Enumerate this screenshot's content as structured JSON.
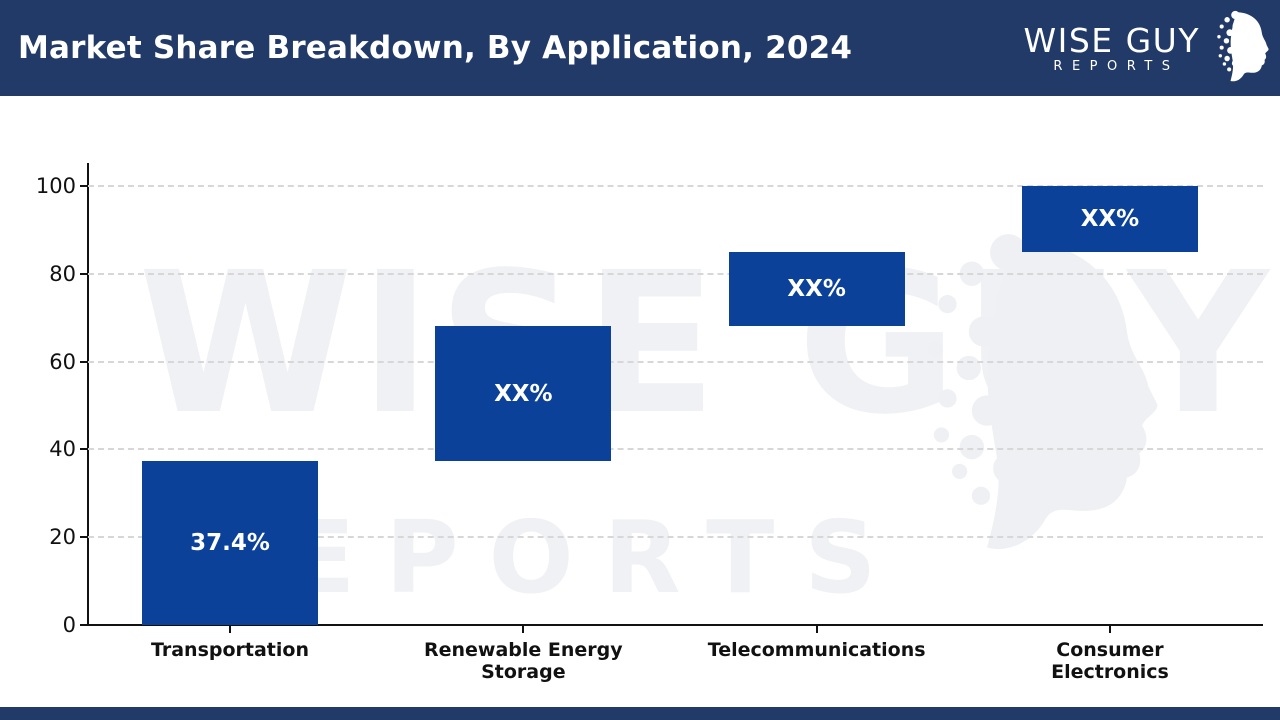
{
  "header": {
    "title": "Market Share Breakdown, By Application, 2024",
    "logo": {
      "line1": "WISE GUY",
      "line2": "REPORTS"
    }
  },
  "watermark": {
    "line1": "WISE GUY",
    "line2": "REPORTS"
  },
  "colors": {
    "header_bg": "#223a67",
    "footer_bg": "#223a67",
    "bar": "#0b4199",
    "grid": "#d7d7d7",
    "axis": "#111111",
    "watermark": "#f0f1f5",
    "bar_label": "#ffffff",
    "tick_label": "#111111"
  },
  "chart_data": {
    "type": "bar",
    "subtype": "floating-waterfall",
    "title": "Market Share Breakdown, By Application, 2024",
    "categories": [
      "Transportation",
      "Renewable Energy\nStorage",
      "Telecommunications",
      "Consumer\nElectronics"
    ],
    "series": [
      {
        "name": "Market share (%)",
        "segments": [
          {
            "category": "Transportation",
            "start": 0,
            "end": 37.4,
            "label": "37.4%"
          },
          {
            "category": "Renewable Energy Storage",
            "start": 37.4,
            "end": 68,
            "label": "XX%"
          },
          {
            "category": "Telecommunications",
            "start": 68,
            "end": 85,
            "label": "XX%"
          },
          {
            "category": "Consumer Electronics",
            "start": 85,
            "end": 100,
            "label": "XX%"
          }
        ]
      }
    ],
    "xlabel": "",
    "ylabel": "",
    "ylim": [
      0,
      100
    ],
    "yticks": [
      0,
      20,
      40,
      60,
      80,
      100
    ],
    "grid": "horizontal dashed",
    "legend": "none"
  }
}
